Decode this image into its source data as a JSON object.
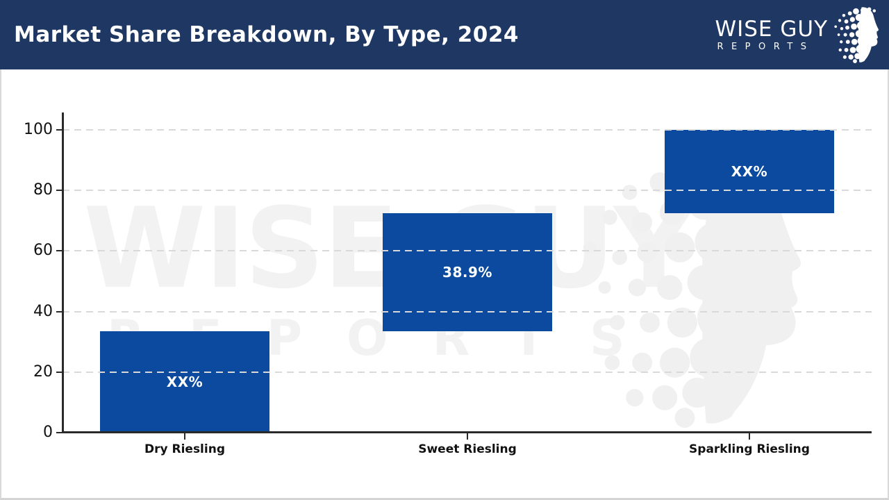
{
  "header": {
    "title": "Market Share Breakdown, By Type, 2024",
    "logo": {
      "wordmark": "WISE GUY",
      "subtext": "REPORTS"
    }
  },
  "watermark": {
    "wordmark": "WISE GUY",
    "subtext": "REPORTS"
  },
  "chart_data": {
    "type": "bar",
    "subtype": "floating-segment-bars (waterfall-style market share breakdown)",
    "title": "Market Share Breakdown, By Type, 2024",
    "categories": [
      "Dry Riesling",
      "Sweet Riesling",
      "Sparkling Riesling"
    ],
    "series": [
      {
        "name": "Market share (%)",
        "segments": [
          {
            "category": "Dry Riesling",
            "start": 0,
            "end": 33.5,
            "label": "XX%"
          },
          {
            "category": "Sweet Riesling",
            "start": 33.5,
            "end": 72.4,
            "label": "38.9%"
          },
          {
            "category": "Sparkling Riesling",
            "start": 72.4,
            "end": 100,
            "label": "XX%"
          }
        ]
      }
    ],
    "ylim": [
      0,
      100
    ],
    "yticks": [
      0,
      20,
      40,
      60,
      80,
      100
    ],
    "grid": {
      "horizontal": true,
      "style": "dashed"
    },
    "legend": "none",
    "bar_color": "#0b4a9e",
    "bar_label_color": "#ffffff",
    "axis_color": "#2a2a2a",
    "gridline_color": "#d9d9d9"
  },
  "colors": {
    "header_bg": "#1f3863",
    "content_bg": "#ffffff",
    "watermark": "#f2f2f2",
    "border": "#d9d9d9"
  }
}
